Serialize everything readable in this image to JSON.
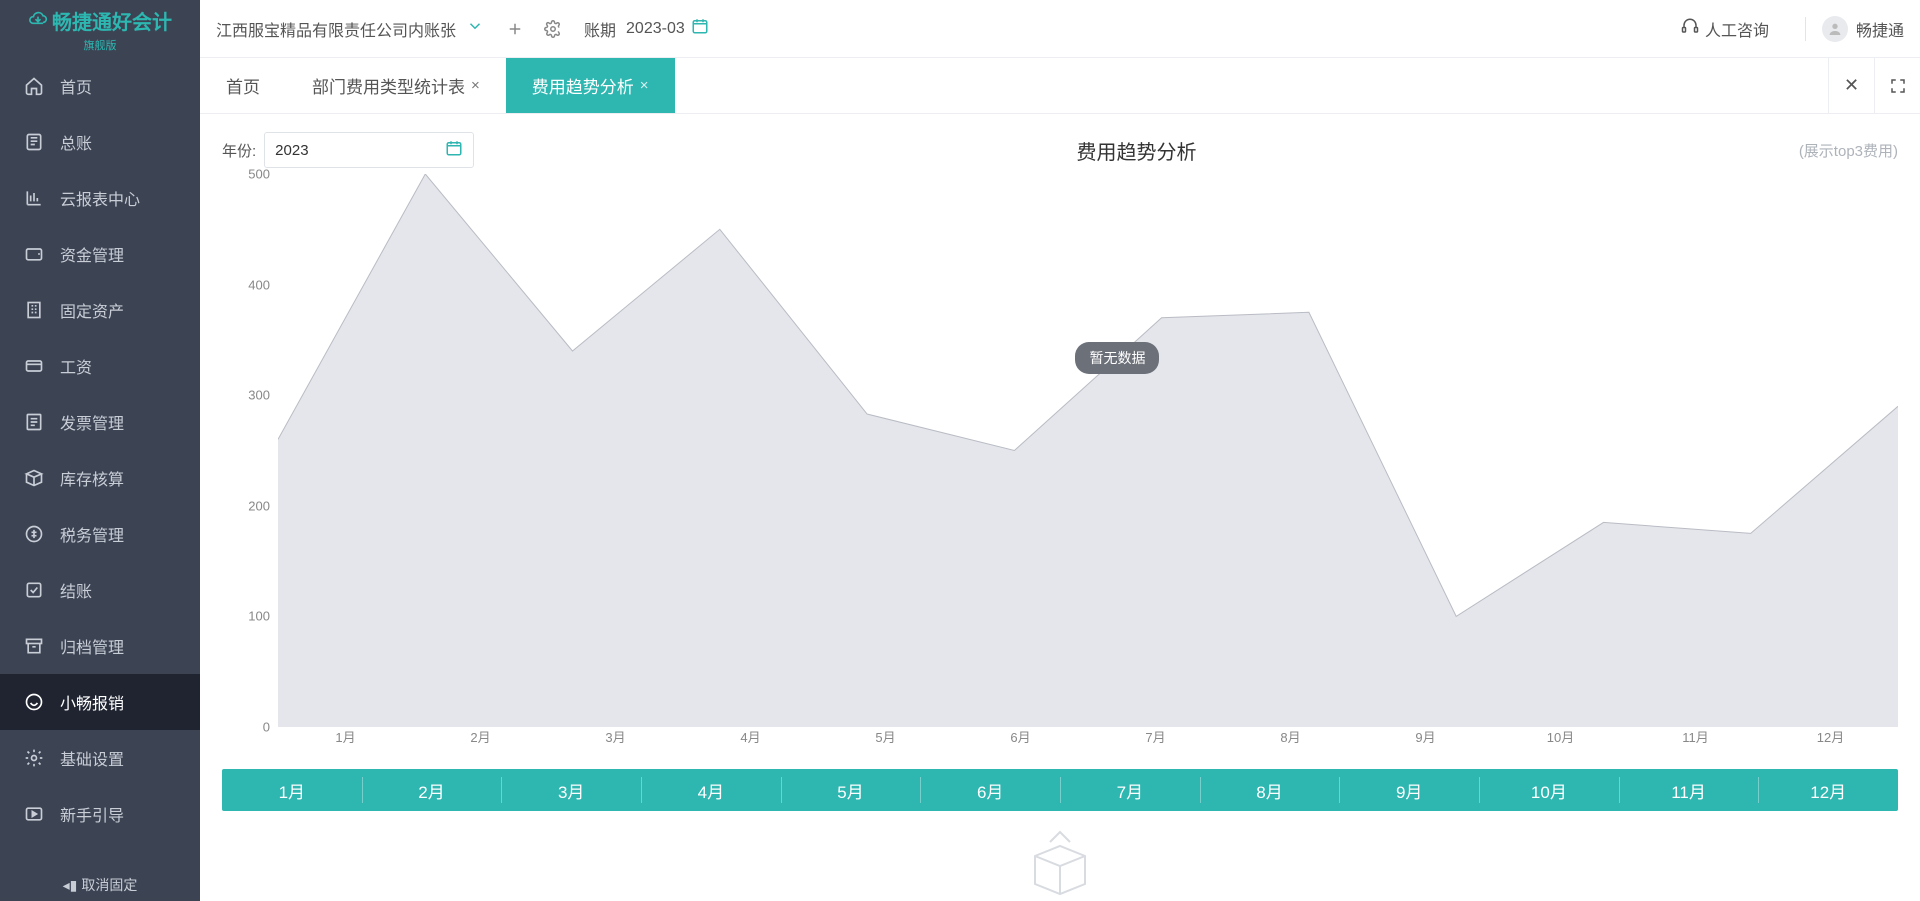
{
  "brand": {
    "name": "畅捷通好会计",
    "edition": "旗舰版"
  },
  "topbar": {
    "company": "江西服宝精品有限责任公司内账张",
    "period_label": "账期",
    "period_value": "2023-03",
    "help_label": "人工咨询",
    "user_name": "畅捷通"
  },
  "sidebar": {
    "items": [
      {
        "id": "home",
        "label": "首页",
        "icon": "home"
      },
      {
        "id": "ledger",
        "label": "总账",
        "icon": "book"
      },
      {
        "id": "reports",
        "label": "云报表中心",
        "icon": "chart"
      },
      {
        "id": "fund",
        "label": "资金管理",
        "icon": "wallet"
      },
      {
        "id": "asset",
        "label": "固定资产",
        "icon": "building"
      },
      {
        "id": "salary",
        "label": "工资",
        "icon": "card"
      },
      {
        "id": "invoice",
        "label": "发票管理",
        "icon": "receipt"
      },
      {
        "id": "stock",
        "label": "库存核算",
        "icon": "box"
      },
      {
        "id": "tax",
        "label": "税务管理",
        "icon": "coin"
      },
      {
        "id": "close",
        "label": "结账",
        "icon": "check"
      },
      {
        "id": "archive",
        "label": "归档管理",
        "icon": "archive"
      },
      {
        "id": "xcbx",
        "label": "小畅报销",
        "icon": "expense",
        "active": true
      },
      {
        "id": "setting",
        "label": "基础设置",
        "icon": "gear"
      },
      {
        "id": "guide",
        "label": "新手引导",
        "icon": "play"
      }
    ],
    "pin_label": "取消固定"
  },
  "tabs": {
    "items": [
      {
        "id": "t0",
        "label": "首页",
        "closable": false
      },
      {
        "id": "t1",
        "label": "部门费用类型统计表",
        "closable": true
      },
      {
        "id": "t2",
        "label": "费用趋势分析",
        "closable": true,
        "active": true
      }
    ]
  },
  "page": {
    "year_label": "年份:",
    "year_value": "2023",
    "chart_title": "费用趋势分析",
    "note": "(展示top3费用)",
    "tooltip_nodata": "暂无数据"
  },
  "chart": {
    "type": "area",
    "y": {
      "min": 0,
      "max": 500,
      "step": 100,
      "ticks": [
        0,
        100,
        200,
        300,
        400,
        500
      ]
    },
    "x_labels": [
      "1月",
      "2月",
      "3月",
      "4月",
      "5月",
      "6月",
      "7月",
      "8月",
      "9月",
      "10月",
      "11月",
      "12月"
    ],
    "values": [
      260,
      500,
      340,
      450,
      283,
      250,
      370,
      375,
      100,
      185,
      175,
      290
    ],
    "fill_color": "#e4e6eb",
    "stroke_color": "#b9bcc4",
    "stroke_width": 1,
    "axis_color": "#888888",
    "tooltip_bg": "#6c7079",
    "tooltip_at_index": 5.7
  },
  "month_bar": {
    "bg": "#2eb6b0",
    "labels": [
      "1月",
      "2月",
      "3月",
      "4月",
      "5月",
      "6月",
      "7月",
      "8月",
      "9月",
      "10月",
      "11月",
      "12月"
    ]
  },
  "colors": {
    "accent": "#2eb6b0",
    "sidebar_bg": "#3c4353",
    "sidebar_active_bg": "#1f2430",
    "border": "#eceef2"
  }
}
